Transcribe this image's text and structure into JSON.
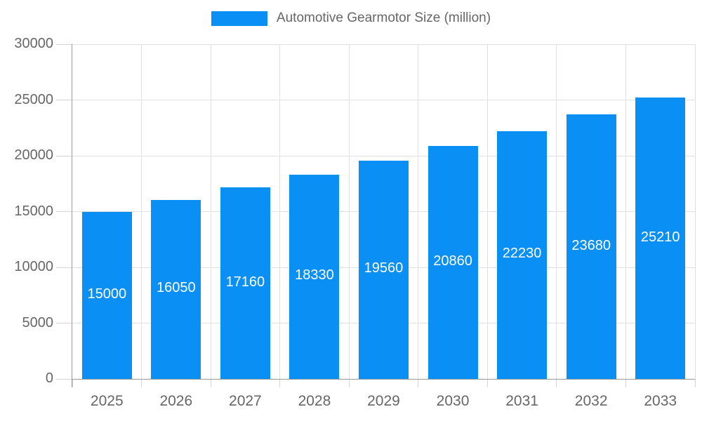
{
  "chart_data": {
    "type": "bar",
    "title": "Automotive Gearmotor Size (million)",
    "legend_position": "top",
    "categories": [
      "2025",
      "2026",
      "2027",
      "2028",
      "2029",
      "2030",
      "2031",
      "2032",
      "2033"
    ],
    "series": [
      {
        "name": "Automotive Gearmotor Size (million)",
        "values": [
          15000,
          16050,
          17160,
          18330,
          19560,
          20860,
          22230,
          23680,
          25210
        ]
      }
    ],
    "xlabel": "",
    "ylabel": "",
    "ylim": [
      0,
      30000
    ],
    "yticks": [
      0,
      5000,
      10000,
      15000,
      20000,
      25000,
      30000
    ],
    "grid": true,
    "bar_value_labels_inside": true,
    "colors": {
      "bar": "#0A90F5",
      "bar_label": "#FFFFFF",
      "grid": "#E0E0E0",
      "tick": "#D4D4D4",
      "axis": "#999999",
      "text": "#666666",
      "background": "#FFFFFF"
    }
  }
}
